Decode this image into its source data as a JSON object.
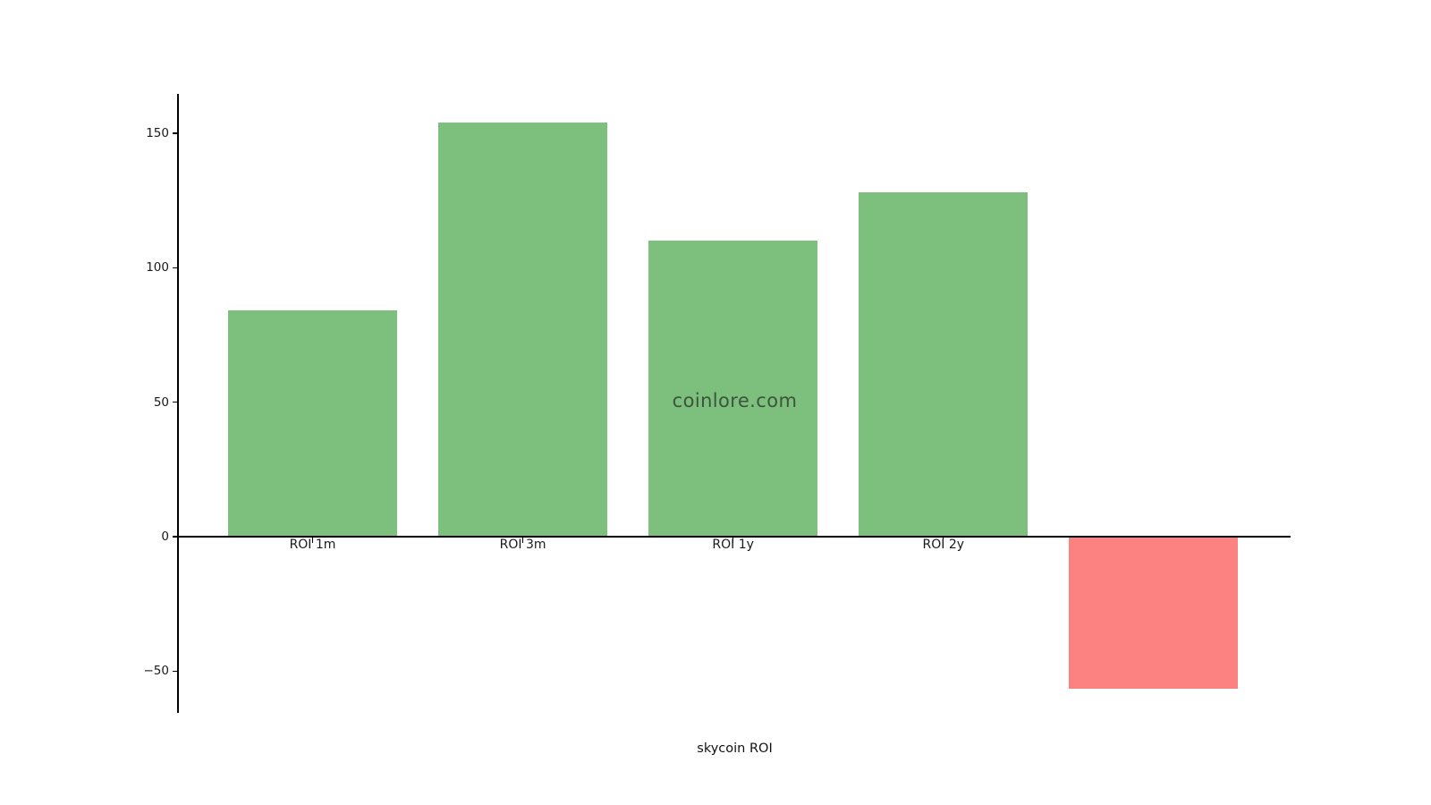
{
  "window": {
    "background": "#ffffff"
  },
  "watermark": {
    "text": "coinlore.com"
  },
  "chart_data": {
    "type": "bar",
    "title": "skycoin ROI",
    "categories": [
      "ROI 1m",
      "ROI 3m",
      "ROI 1y",
      "ROI 2y",
      ""
    ],
    "values": [
      84,
      154,
      110,
      128,
      -56
    ],
    "xlabel": "",
    "ylabel": "",
    "ylim": [
      -65,
      165
    ],
    "yticks": [
      150,
      100,
      50,
      0,
      -50
    ],
    "grid": false,
    "legend": false,
    "bar_colors": {
      "positive": "#7dc07d",
      "negative": "#fc8181"
    },
    "axis_color": "#000000",
    "text_color": "#1a1a1a",
    "watermark_text": "coinlore.com"
  }
}
